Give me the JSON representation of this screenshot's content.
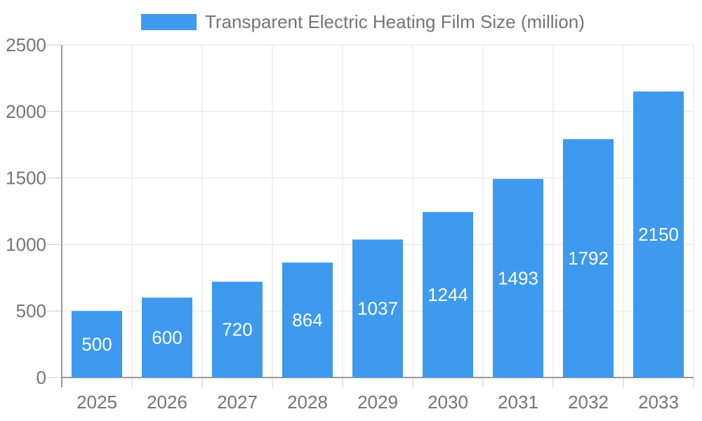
{
  "legend": {
    "label": "Transparent Electric Heating Film Size (million)",
    "position": "top"
  },
  "colors": {
    "bar": "#3D9AEE",
    "text": "#757575",
    "grid": "#E6E6E6",
    "tick": "#CCCCCC",
    "axis": "#999999",
    "bar_label": "#FFFFFF",
    "background": "#FFFFFF"
  },
  "chart_data": {
    "type": "bar",
    "title": "Transparent Electric Heating Film Size (million)",
    "xlabel": "",
    "ylabel": "",
    "categories": [
      "2025",
      "2026",
      "2027",
      "2028",
      "2029",
      "2030",
      "2031",
      "2032",
      "2033"
    ],
    "values": [
      500,
      600,
      720,
      864,
      1037,
      1244,
      1493,
      1792,
      2150
    ],
    "ylim": [
      0,
      2500
    ],
    "yticks": [
      0,
      500,
      1000,
      1500,
      2000,
      2500
    ],
    "grid": true,
    "legend_position": "top",
    "value_labels_inside_bars": true
  }
}
